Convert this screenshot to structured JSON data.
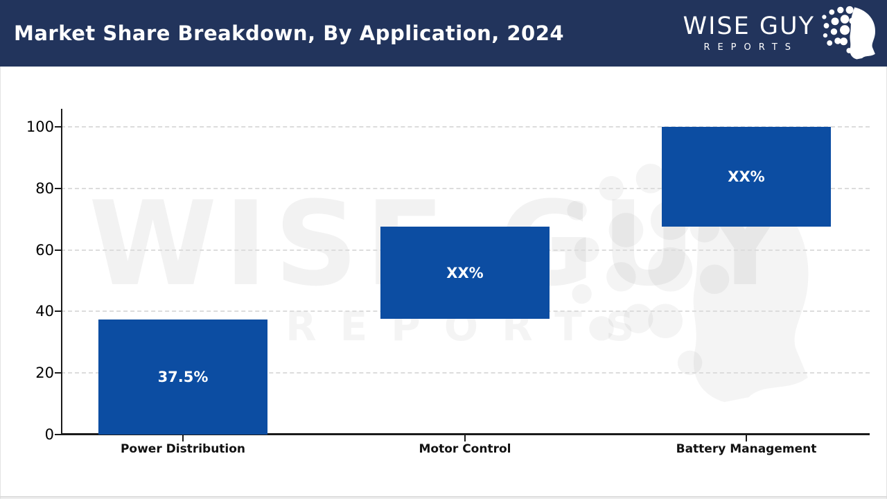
{
  "header": {
    "title": "Market Share Breakdown, By Application, 2024",
    "logo": {
      "line1": "WISE GUY",
      "line2": "REPORTS"
    }
  },
  "watermark": {
    "line1": "WISE GUY",
    "line2": "REPORTS"
  },
  "colors": {
    "header_bg": "#22345c",
    "bar": "#0c4da2",
    "bar_label": "#ffffff",
    "axis": "#1a1a1a",
    "grid": "#dcdcdc",
    "tick_text": "#000000",
    "category_text": "#111111"
  },
  "chart_data": {
    "type": "bar",
    "variant": "floating-segment (waterfall-style market share)",
    "title": "Market Share Breakdown, By Application, 2024",
    "categories": [
      "Power Distribution",
      "Motor Control",
      "Battery Management"
    ],
    "segments": [
      {
        "category": "Power Distribution",
        "start": 0,
        "end": 37.5,
        "label": "37.5%"
      },
      {
        "category": "Motor Control",
        "start": 37.5,
        "end": 67.5,
        "label": "XX%"
      },
      {
        "category": "Battery Management",
        "start": 67.5,
        "end": 100,
        "label": "XX%"
      }
    ],
    "xlabel": "",
    "ylabel": "",
    "yticks": [
      0,
      20,
      40,
      60,
      80,
      100
    ],
    "ylim": [
      0,
      105
    ],
    "grid": "horizontal-dashed",
    "legend": "none",
    "unit": "%"
  }
}
